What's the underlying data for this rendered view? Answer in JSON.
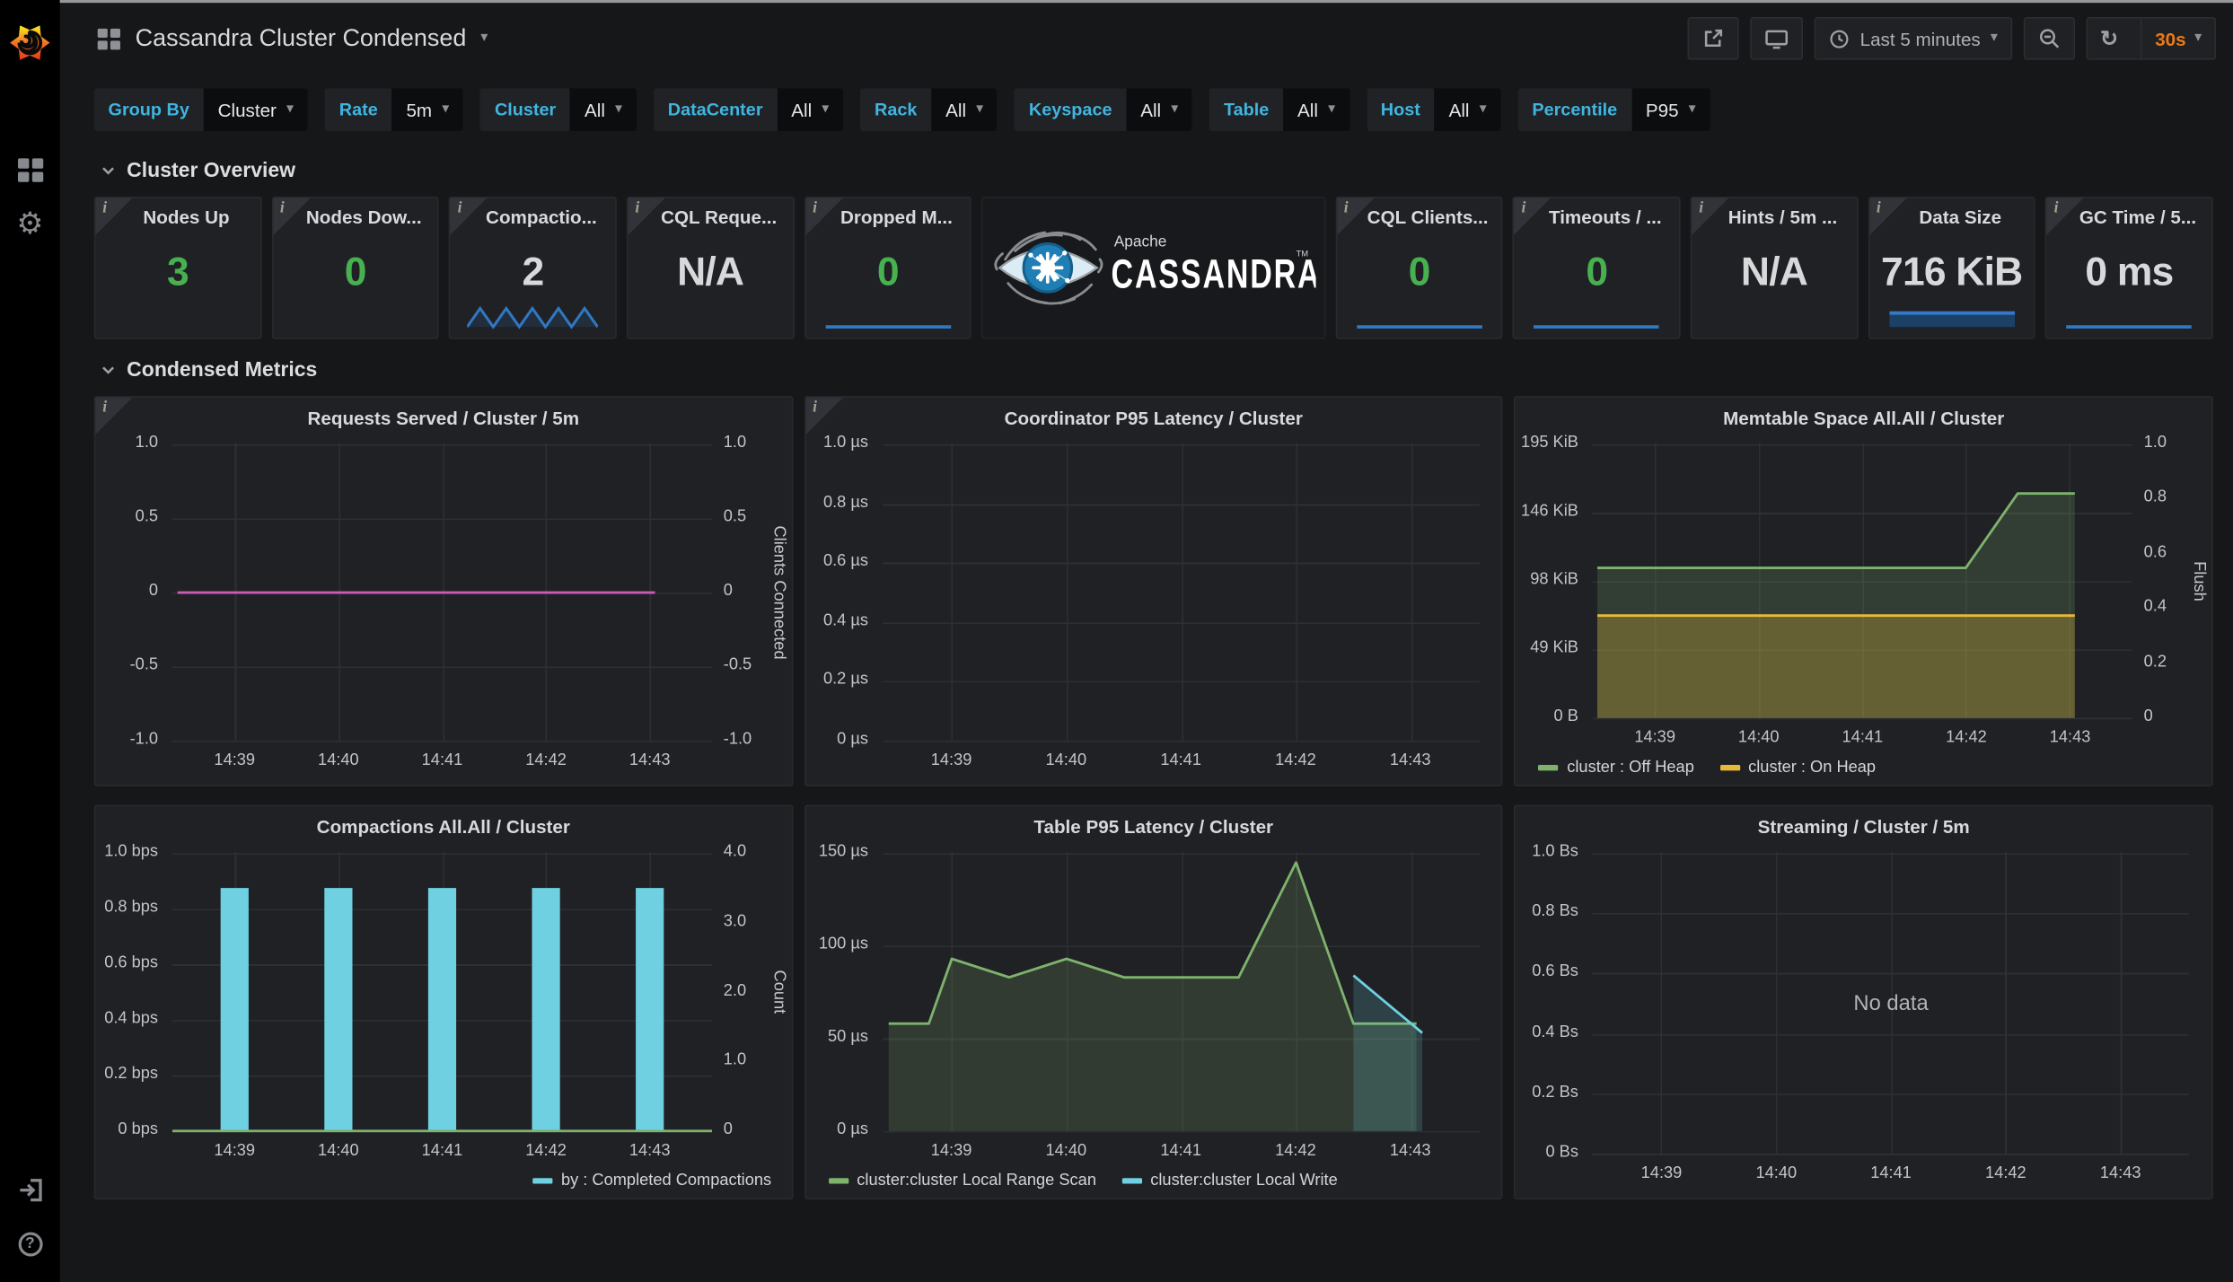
{
  "header": {
    "title": "Cassandra Cluster Condensed",
    "time_range": "Last 5 minutes",
    "refresh_interval": "30s"
  },
  "icons": {
    "sidebar": [
      "grafana-logo",
      "dashboards-grid-icon",
      "settings-gear-icon",
      "sign-in-icon",
      "help-icon"
    ],
    "header": [
      "dashboard-grid-icon",
      "caret-down-icon",
      "share-icon",
      "tv-mode-icon",
      "clock-icon",
      "zoom-out-icon",
      "refresh-icon"
    ]
  },
  "colors": {
    "accent_orange": "#eb7b18",
    "template_label_cyan": "#3fb5e0",
    "stat_green": "#47b04f",
    "stat_white": "#d8d9da",
    "sparkline_blue": "#2f78c2",
    "series_green": "#7eb26d",
    "series_yellow": "#eab839",
    "series_cyan": "#6ed0e0",
    "series_pink": "#ca5cb8"
  },
  "filters": [
    {
      "label": "Group By",
      "value": "Cluster"
    },
    {
      "label": "Rate",
      "value": "5m"
    },
    {
      "label": "Cluster",
      "value": "All"
    },
    {
      "label": "DataCenter",
      "value": "All"
    },
    {
      "label": "Rack",
      "value": "All"
    },
    {
      "label": "Keyspace",
      "value": "All"
    },
    {
      "label": "Table",
      "value": "All"
    },
    {
      "label": "Host",
      "value": "All"
    },
    {
      "label": "Percentile",
      "value": "P95"
    }
  ],
  "sections": {
    "overview": "Cluster Overview",
    "condensed": "Condensed Metrics"
  },
  "stats": [
    {
      "title": "Nodes Up",
      "value": "3",
      "color": "green",
      "sparkline": "none"
    },
    {
      "title": "Nodes Dow...",
      "value": "0",
      "color": "green",
      "sparkline": "none"
    },
    {
      "title": "Compactio...",
      "value": "2",
      "color": "white",
      "sparkline": "zigzag"
    },
    {
      "title": "CQL Reque...",
      "value": "N/A",
      "color": "white",
      "sparkline": "none"
    },
    {
      "title": "Dropped M...",
      "value": "0",
      "color": "green",
      "sparkline": "flat"
    },
    {
      "title": "CQL Clients...",
      "value": "0",
      "color": "green",
      "sparkline": "flat"
    },
    {
      "title": "Timeouts / ...",
      "value": "0",
      "color": "green",
      "sparkline": "flat"
    },
    {
      "title": "Hints / 5m ...",
      "value": "N/A",
      "color": "white",
      "sparkline": "none"
    },
    {
      "title": "Data Size",
      "value": "716 KiB",
      "color": "white",
      "sparkline": "bar"
    },
    {
      "title": "GC Time / 5...",
      "value": "0 ms",
      "color": "white",
      "sparkline": "flat"
    }
  ],
  "sparkline_shapes": {
    "zigzag": [
      [
        0,
        0
      ],
      [
        10,
        1
      ],
      [
        20,
        0
      ],
      [
        30,
        1
      ],
      [
        40,
        0
      ],
      [
        50,
        1
      ],
      [
        60,
        0
      ],
      [
        70,
        1
      ],
      [
        80,
        0
      ],
      [
        90,
        1
      ],
      [
        100,
        0
      ]
    ],
    "flat": [
      [
        2,
        0
      ],
      [
        98,
        0
      ]
    ],
    "bar": [
      [
        2,
        0.75
      ],
      [
        98,
        0.75
      ]
    ]
  },
  "cassandra_logo": {
    "apache": "Apache",
    "name": "CASSANDRA",
    "tm": "TM"
  },
  "chart_data": [
    {
      "id": "requests",
      "type": "line",
      "title": "Requests Served / Cluster / 5m",
      "x_ticks": [
        "14:39",
        "14:40",
        "14:41",
        "14:42",
        "14:43"
      ],
      "x_tick_minutes": [
        39,
        40,
        41,
        42,
        43
      ],
      "x_range_minutes": [
        38.4,
        43.6
      ],
      "y_left": {
        "ticks": [
          "1.0",
          "0.5",
          "0",
          "-0.5",
          "-1.0"
        ],
        "min": -1,
        "max": 1
      },
      "y_right": {
        "ticks": [
          "1.0",
          "0.5",
          "0",
          "-0.5",
          "-1.0"
        ],
        "min": -1,
        "max": 1,
        "label": "Clients Connected"
      },
      "series": [
        {
          "name": "requests-served",
          "color": "#ca5cb8",
          "axis": "left",
          "fill_opacity": 0,
          "points": [
            [
              38.45,
              0
            ],
            [
              43.05,
              0
            ]
          ]
        }
      ],
      "legend": null,
      "no_data": null
    },
    {
      "id": "coordinator",
      "type": "line",
      "title": "Coordinator P95 Latency / Cluster",
      "x_ticks": [
        "14:39",
        "14:40",
        "14:41",
        "14:42",
        "14:43"
      ],
      "x_tick_minutes": [
        39,
        40,
        41,
        42,
        43
      ],
      "x_range_minutes": [
        38.4,
        43.6
      ],
      "y_left": {
        "ticks": [
          "1.0 µs",
          "0.8 µs",
          "0.6 µs",
          "0.4 µs",
          "0.2 µs",
          "0 µs"
        ],
        "min": 0,
        "max": 1
      },
      "y_right": null,
      "series": [],
      "legend": null,
      "no_data": null
    },
    {
      "id": "memtable",
      "type": "area",
      "title": "Memtable Space All.All / Cluster",
      "x_ticks": [
        "14:39",
        "14:40",
        "14:41",
        "14:42",
        "14:43"
      ],
      "x_tick_minutes": [
        39,
        40,
        41,
        42,
        43
      ],
      "x_range_minutes": [
        38.4,
        43.6
      ],
      "y_left": {
        "ticks": [
          "195 KiB",
          "146 KiB",
          "98 KiB",
          "49 KiB",
          "0 B"
        ],
        "min": 0,
        "max": 195
      },
      "y_right": {
        "ticks": [
          "1.0",
          "0.8",
          "0.6",
          "0.4",
          "0.2",
          "0"
        ],
        "min": 0,
        "max": 1,
        "label": "Flush"
      },
      "series": [
        {
          "name": "cluster : Off Heap",
          "color": "#7eb26d",
          "axis": "left",
          "fill_opacity": 0.2,
          "points": [
            [
              38.45,
              107
            ],
            [
              42.0,
              107
            ],
            [
              42.5,
              160
            ],
            [
              43.05,
              160
            ]
          ]
        },
        {
          "name": "cluster : On Heap",
          "color": "#eab839",
          "axis": "left",
          "fill_opacity": 0.28,
          "points": [
            [
              38.45,
              73
            ],
            [
              43.05,
              73
            ]
          ]
        }
      ],
      "legend": {
        "align": "left",
        "items": [
          {
            "label": "cluster : Off Heap",
            "color": "#7eb26d"
          },
          {
            "label": "cluster : On Heap",
            "color": "#eab839"
          }
        ]
      },
      "no_data": null
    },
    {
      "id": "compactions",
      "type": "bar",
      "title": "Compactions All.All / Cluster",
      "x_ticks": [
        "14:39",
        "14:40",
        "14:41",
        "14:42",
        "14:43"
      ],
      "x_tick_minutes": [
        39,
        40,
        41,
        42,
        43
      ],
      "x_range_minutes": [
        38.4,
        43.6
      ],
      "y_left": {
        "ticks": [
          "1.0 bps",
          "0.8 bps",
          "0.6 bps",
          "0.4 bps",
          "0.2 bps",
          "0 bps"
        ],
        "min": 0,
        "max": 1
      },
      "y_right": {
        "ticks": [
          "4.0",
          "3.0",
          "2.0",
          "1.0",
          "0"
        ],
        "min": 0,
        "max": 4,
        "label": "Count"
      },
      "bars": {
        "name": "by : Completed Compactions",
        "color": "#6ed0e0",
        "axis": "right",
        "x": [
          39,
          40,
          41,
          42,
          43
        ],
        "values": [
          3.5,
          3.5,
          3.5,
          3.5,
          3.5
        ],
        "width_minutes": 0.27
      },
      "series": [
        {
          "name": "bytes-compacted",
          "color": "#7eb26d",
          "axis": "left",
          "fill_opacity": 0,
          "points": [
            [
              38.4,
              0
            ],
            [
              43.6,
              0
            ]
          ]
        }
      ],
      "legend": {
        "align": "right",
        "items": [
          {
            "label": "by : Completed Compactions",
            "color": "#6ed0e0"
          }
        ]
      },
      "no_data": null
    },
    {
      "id": "table_p95",
      "type": "area",
      "title": "Table P95 Latency / Cluster",
      "x_ticks": [
        "14:39",
        "14:40",
        "14:41",
        "14:42",
        "14:43"
      ],
      "x_tick_minutes": [
        39,
        40,
        41,
        42,
        43
      ],
      "x_range_minutes": [
        38.4,
        43.6
      ],
      "y_left": {
        "ticks": [
          "150 µs",
          "100 µs",
          "50 µs",
          "0 µs"
        ],
        "min": 0,
        "max": 150
      },
      "y_right": null,
      "series": [
        {
          "name": "cluster:cluster Local Range Scan",
          "color": "#7eb26d",
          "axis": "left",
          "fill_opacity": 0.18,
          "points": [
            [
              38.45,
              58
            ],
            [
              38.8,
              58
            ],
            [
              39,
              93
            ],
            [
              39.5,
              83
            ],
            [
              40,
              93
            ],
            [
              40.5,
              83
            ],
            [
              41.5,
              83
            ],
            [
              42,
              145
            ],
            [
              42.5,
              58
            ],
            [
              43.05,
              58
            ]
          ]
        },
        {
          "name": "cluster:cluster Local Write",
          "color": "#6ed0e0",
          "axis": "left",
          "fill_opacity": 0.18,
          "points": [
            [
              42.5,
              84
            ],
            [
              43.1,
              53
            ]
          ]
        }
      ],
      "legend": {
        "align": "left",
        "items": [
          {
            "label": "cluster:cluster Local Range Scan",
            "color": "#7eb26d"
          },
          {
            "label": "cluster:cluster Local Write",
            "color": "#6ed0e0"
          }
        ]
      },
      "no_data": null
    },
    {
      "id": "streaming",
      "type": "line",
      "title": "Streaming / Cluster / 5m",
      "x_ticks": [
        "14:39",
        "14:40",
        "14:41",
        "14:42",
        "14:43"
      ],
      "x_tick_minutes": [
        39,
        40,
        41,
        42,
        43
      ],
      "x_range_minutes": [
        38.4,
        43.6
      ],
      "y_left": {
        "ticks": [
          "1.0 Bs",
          "0.8 Bs",
          "0.6 Bs",
          "0.4 Bs",
          "0.2 Bs",
          "0 Bs"
        ],
        "min": 0,
        "max": 1
      },
      "y_right": null,
      "series": [],
      "legend": null,
      "no_data": "No data"
    }
  ]
}
